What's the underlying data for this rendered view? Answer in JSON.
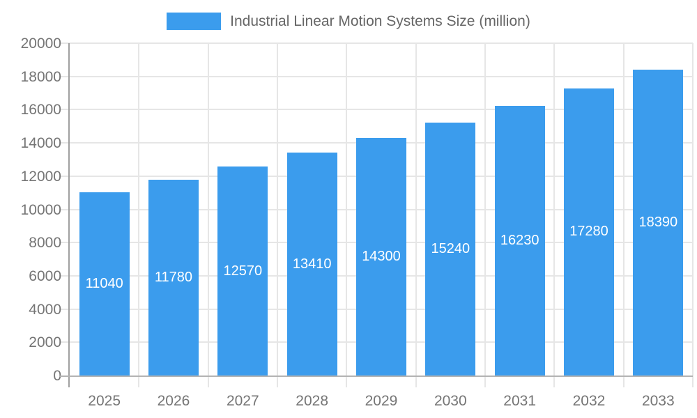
{
  "legend": {
    "label": "Industrial Linear Motion Systems Size (million)"
  },
  "chart_data": {
    "type": "bar",
    "title": "Industrial Linear Motion Systems Size (million)",
    "categories": [
      "2025",
      "2026",
      "2027",
      "2028",
      "2029",
      "2030",
      "2031",
      "2032",
      "2033"
    ],
    "values": [
      11040,
      11780,
      12570,
      13410,
      14300,
      15240,
      16230,
      17280,
      18390
    ],
    "xlabel": "",
    "ylabel": "",
    "ylim": [
      0,
      20000
    ],
    "ytick_interval": 2000,
    "ytick_labels": [
      "0",
      "2000",
      "4000",
      "6000",
      "8000",
      "10000",
      "12000",
      "14000",
      "16000",
      "18000",
      "20000"
    ],
    "grid": true,
    "legend_position": "top-center",
    "bar_color": "#3B9CED",
    "bar_label_color": "#FFFFFF",
    "axis_text_color": "#757575",
    "gridline_color": "#E6E6E6",
    "y_axis_line_color": "#A0A0A0",
    "x_axis_line_color": "#B3B3B3"
  }
}
